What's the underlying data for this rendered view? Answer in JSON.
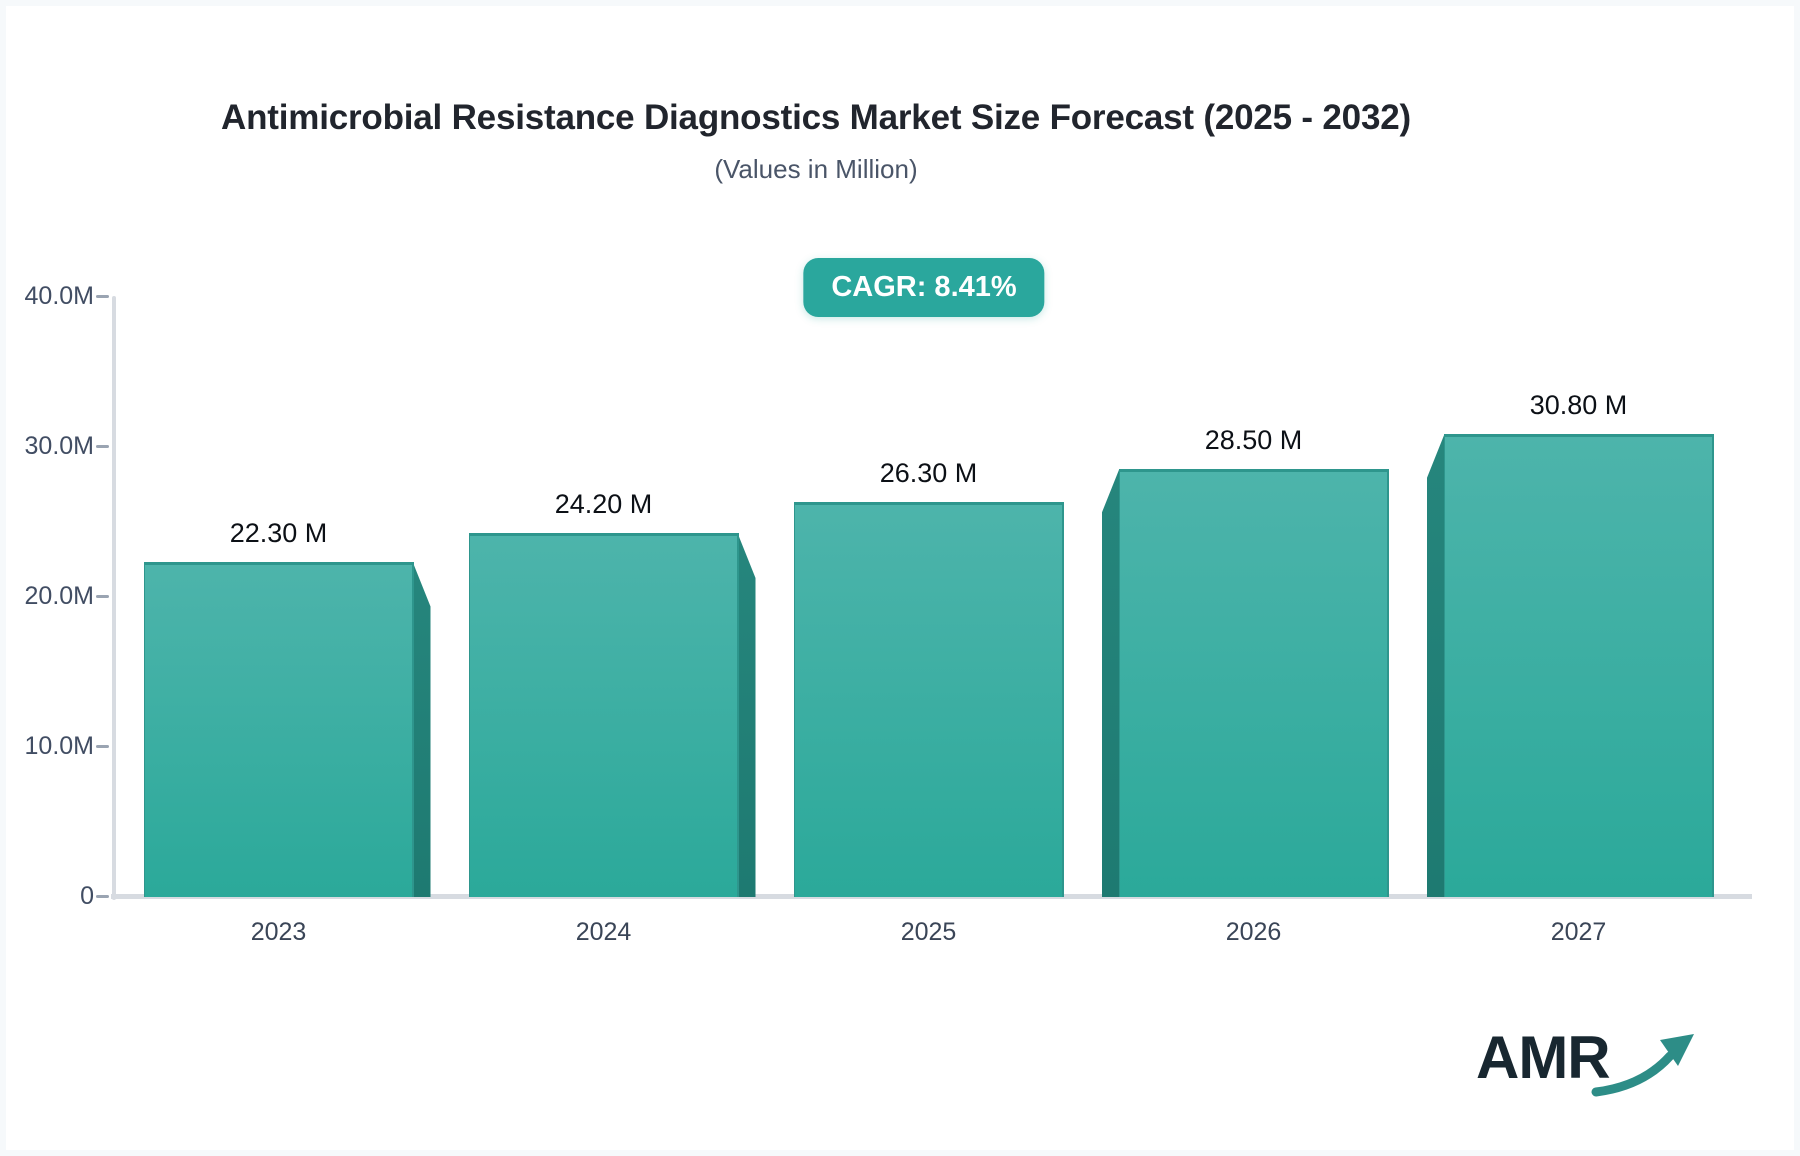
{
  "header": {
    "title": "Antimicrobial Resistance Diagnostics Market Size Forecast (2025 - 2032)",
    "subtitle": "(Values in Million)",
    "cagr_badge": "CAGR: 8.41%"
  },
  "chart_data": {
    "type": "bar",
    "title": "Antimicrobial Resistance Diagnostics Market Size Forecast (2025 - 2032)",
    "subtitle": "(Values in Million)",
    "annotation": "CAGR: 8.41%",
    "categories": [
      "2023",
      "2024",
      "2025",
      "2026",
      "2027"
    ],
    "values": [
      22.3,
      24.2,
      26.3,
      28.5,
      30.8
    ],
    "value_labels": [
      "22.30 M",
      "24.20 M",
      "26.30 M",
      "28.50 M",
      "30.80 M"
    ],
    "ylim": [
      0,
      40
    ],
    "yticks": [
      {
        "value": 40,
        "label": "40.0M"
      },
      {
        "value": 30,
        "label": "30.0M"
      },
      {
        "value": 20,
        "label": "20.0M"
      },
      {
        "value": 10,
        "label": "10.0M"
      },
      {
        "value": 0,
        "label": "0"
      }
    ],
    "grid": false,
    "legend": false,
    "colors": {
      "bar_face_top": "#4db4ab",
      "bar_face_bottom": "#2ba99a",
      "bar_edge": "#2e968d",
      "bar_side_top": "#26867d",
      "bar_side_bottom": "#1e7a71",
      "axis_line": "#d7dbe1",
      "tick_mark": "#9aa4b2",
      "badge_bg": "#2aa79d",
      "title_color": "#21252d",
      "subtitle_color": "#4a5568",
      "y_label_color": "#414d63",
      "x_label_color": "#3a4557"
    }
  },
  "logo": {
    "text": "AMR",
    "arrow_icon": "trend-up-arrow",
    "text_color": "#182730",
    "arrow_color": "#2d8d87"
  }
}
